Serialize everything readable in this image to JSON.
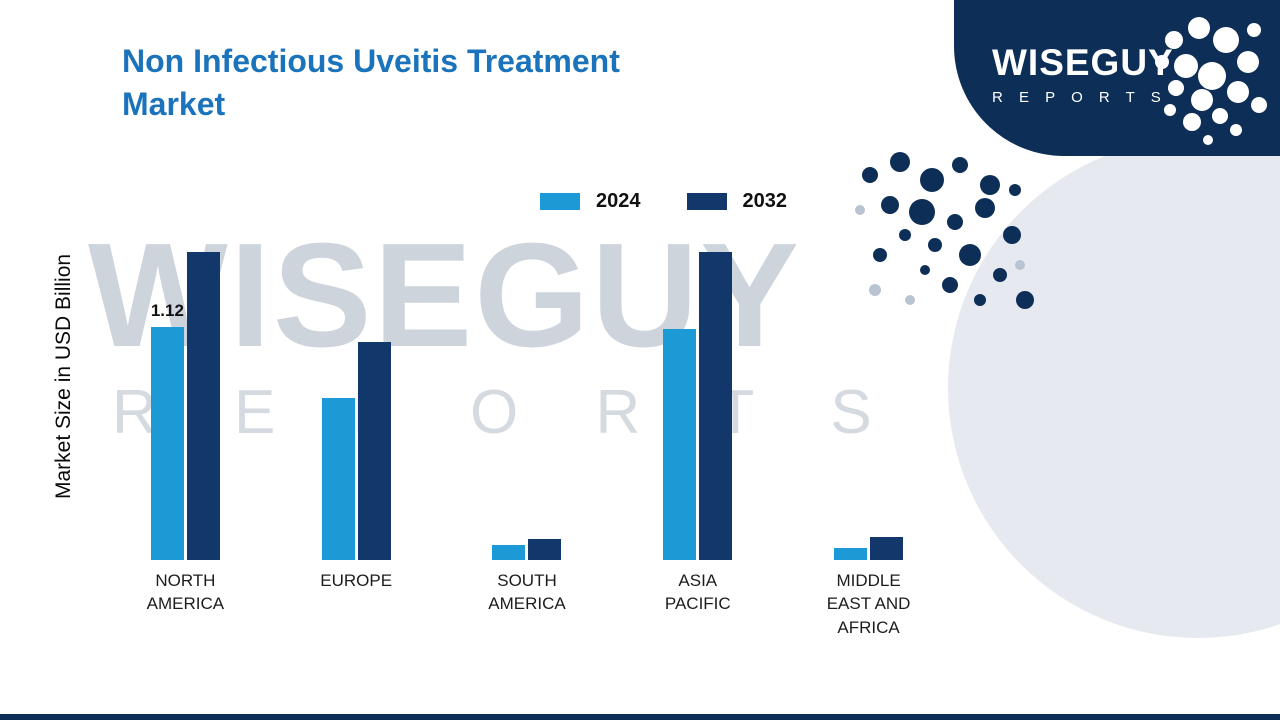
{
  "logo": {
    "wordmark": "WISEGUY",
    "reports": "R E P O R T S"
  },
  "watermark": {
    "wordmark": "WISEGUY",
    "reports": "R E P O R T S"
  },
  "colors": {
    "title_blue": "#1b74bb",
    "series_2024": "#1b9ad6",
    "series_2032": "#12386b",
    "brand_navy": "#0d2f57",
    "watermark_gray": "#ced4dc"
  },
  "chart_data": {
    "type": "bar",
    "title": "Non Infectious Uveitis Treatment Market",
    "ylabel": "Market Size in USD Billion",
    "xlabel": "",
    "categories": [
      "NORTH AMERICA",
      "EUROPE",
      "SOUTH AMERICA",
      "ASIA PACIFIC",
      "MIDDLE EAST AND AFRICA"
    ],
    "series": [
      {
        "name": "2024",
        "color": "#1b9ad6",
        "values": [
          1.12,
          0.78,
          0.07,
          1.11,
          0.06
        ]
      },
      {
        "name": "2032",
        "color": "#12386b",
        "values": [
          1.48,
          1.05,
          0.1,
          1.48,
          0.11
        ]
      }
    ],
    "annotations": [
      {
        "series_index": 0,
        "category_index": 0,
        "text": "1.12"
      }
    ],
    "ylim": [
      0,
      1.6
    ],
    "grid": false,
    "legend_position": "top"
  }
}
